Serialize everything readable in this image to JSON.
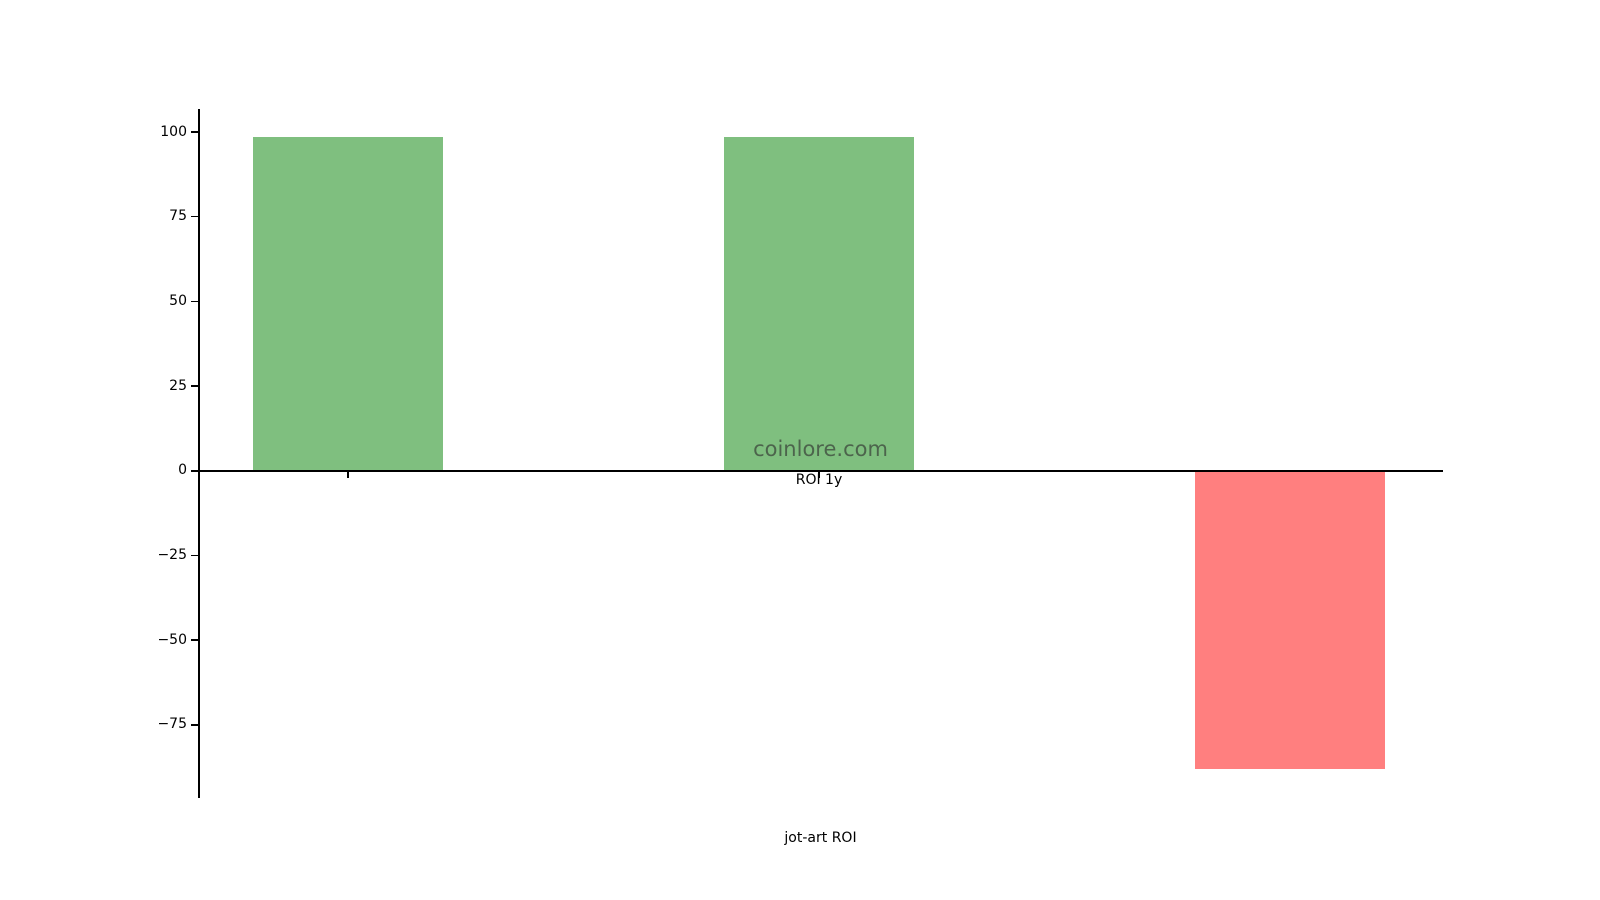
{
  "chart_data": {
    "type": "bar",
    "title": "jot-art ROI",
    "watermark": "coinlore.com",
    "categories": [
      "",
      "ROI 1y",
      ""
    ],
    "values": [
      98.5,
      98.5,
      -88.1
    ],
    "bar_colors": [
      "#7fbf7f",
      "#7fbf7f",
      "#ff7f7f"
    ],
    "positive_color": "#7fbf7f",
    "negative_color": "#ff7f7f",
    "axis_color": "#000000",
    "text_color": "#000000",
    "watermark_color": "#2e2e2e",
    "background_color": "#ffffff",
    "ylim": [
      -96.6,
      106.8
    ],
    "ytick_values": [
      100,
      75,
      50,
      25,
      0,
      -25,
      -50,
      -75
    ],
    "ytick_labels": [
      "100",
      "75",
      "50",
      "25",
      "0",
      "−25",
      "−50",
      "−75"
    ],
    "xlabel": "",
    "ylabel": "",
    "grid": false,
    "legend": false
  }
}
